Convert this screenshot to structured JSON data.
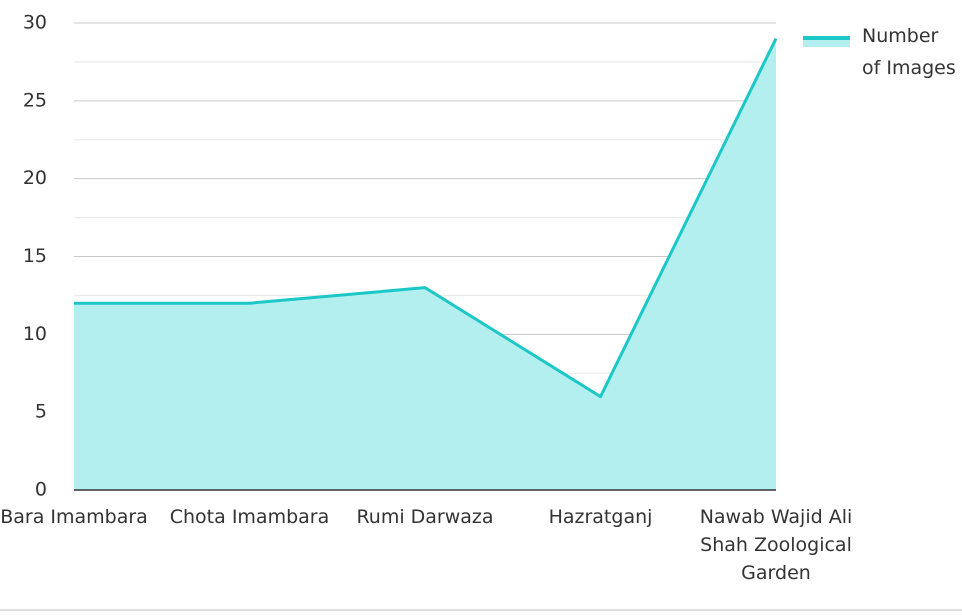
{
  "chart_data": {
    "type": "area",
    "categories": [
      "Bara Imambara",
      "Chota Imambara",
      "Rumi Darwaza",
      "Hazratganj",
      "Nawab Wajid Ali Shah Zoological Garden"
    ],
    "series": [
      {
        "name": "Number of Images",
        "color": "#1cc7c7",
        "fill": "#b3efee",
        "values": [
          12,
          12,
          13,
          6,
          29
        ]
      }
    ],
    "ylim": [
      0,
      30
    ],
    "yticks": [
      0,
      5,
      10,
      15,
      20,
      25,
      30
    ],
    "grid": true,
    "legend": "top-right"
  }
}
